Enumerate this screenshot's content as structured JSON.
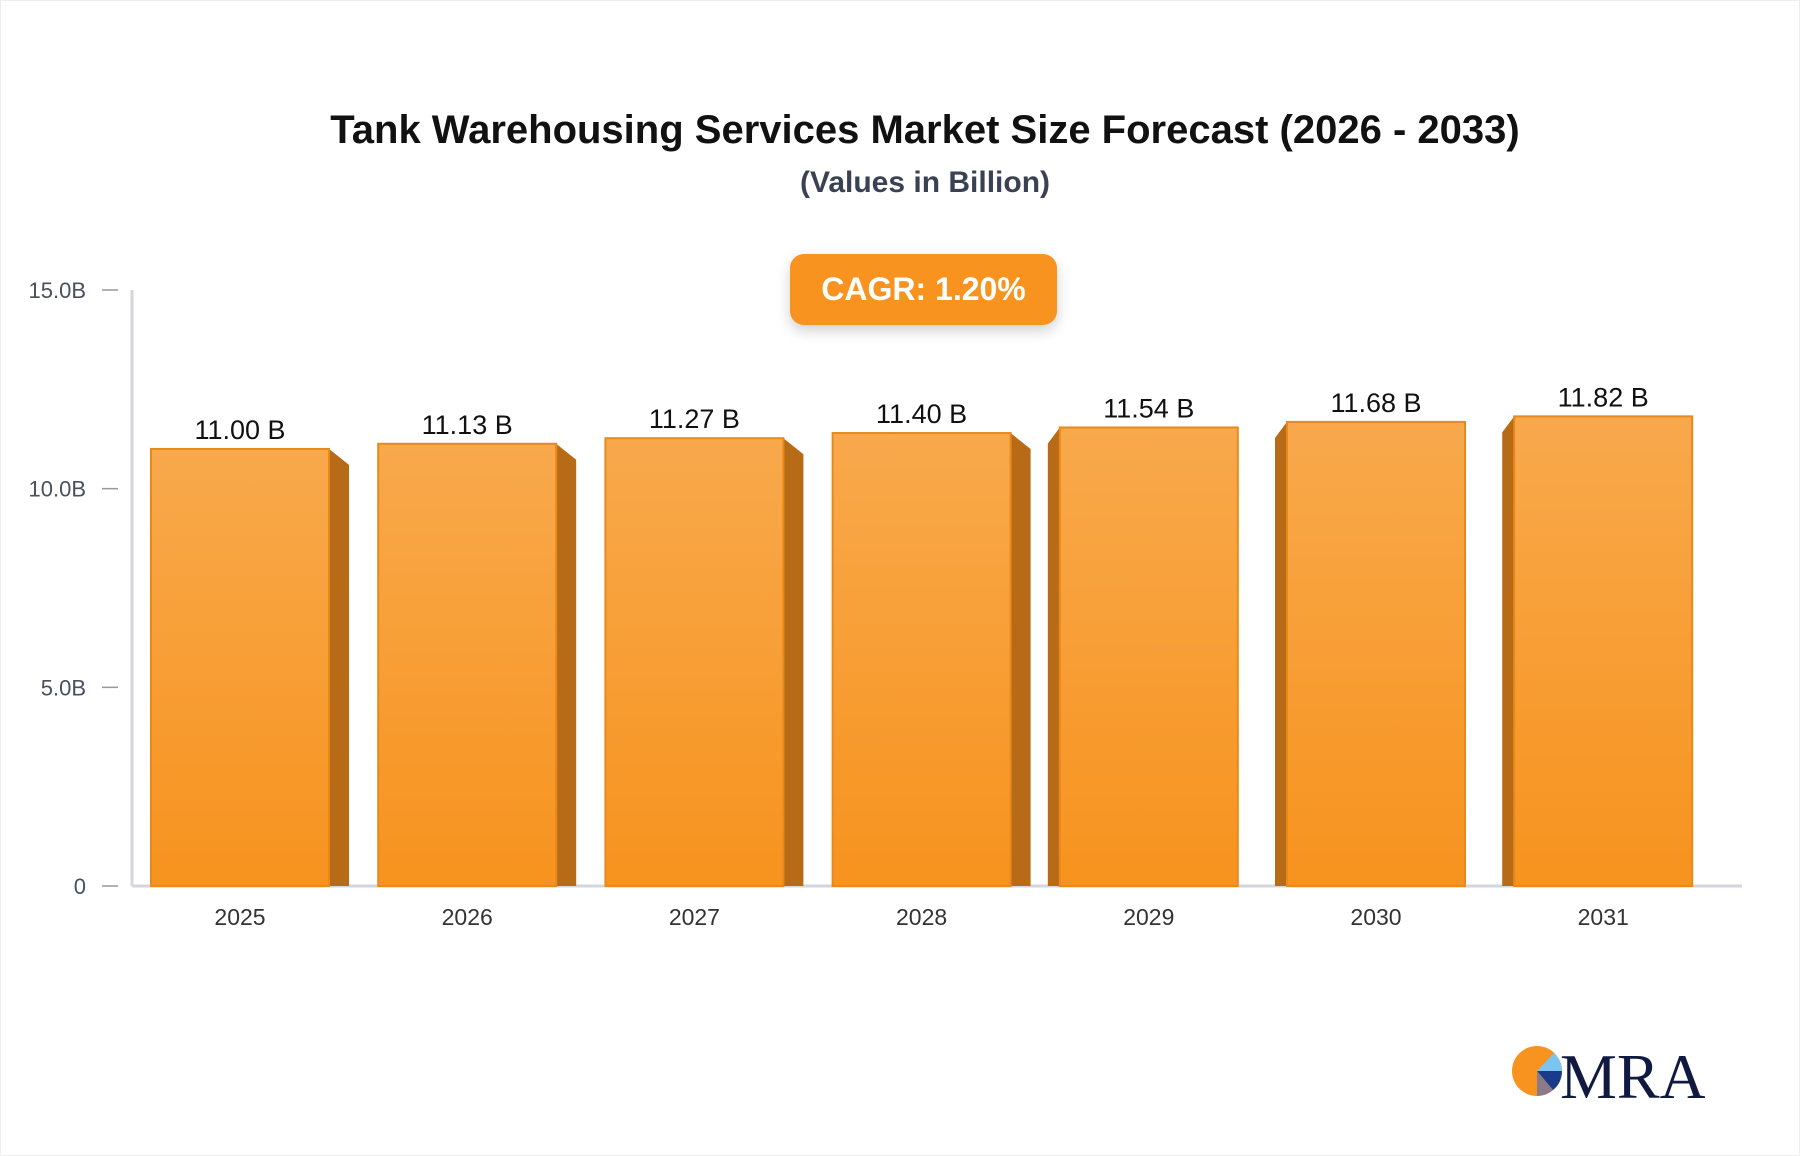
{
  "chart_data": {
    "type": "bar",
    "title": "Tank Warehousing Services Market Size Forecast (2026 - 2033)",
    "subtitle": "(Values in Billion)",
    "annotation": "CAGR: 1.20%",
    "categories": [
      "2025",
      "2026",
      "2027",
      "2028",
      "2029",
      "2030",
      "2031"
    ],
    "values": [
      11.0,
      11.13,
      11.27,
      11.4,
      11.54,
      11.68,
      11.82
    ],
    "data_labels": [
      "11.00 B",
      "11.13 B",
      "11.27 B",
      "11.40 B",
      "11.54 B",
      "11.68 B",
      "11.82 B"
    ],
    "ylim": [
      0,
      15
    ],
    "yticks": [
      0,
      5,
      10,
      15
    ],
    "ytick_labels": [
      "0",
      "5.0B",
      "10.0B",
      "15.0B"
    ],
    "xlabel": "",
    "ylabel": "",
    "grid": false,
    "colors": {
      "bar": "#f7931e",
      "bar_top": "#f8a94c",
      "bar_side": "#b86b16",
      "accent": "#f7931e"
    }
  },
  "logo": {
    "text": "MRA"
  }
}
